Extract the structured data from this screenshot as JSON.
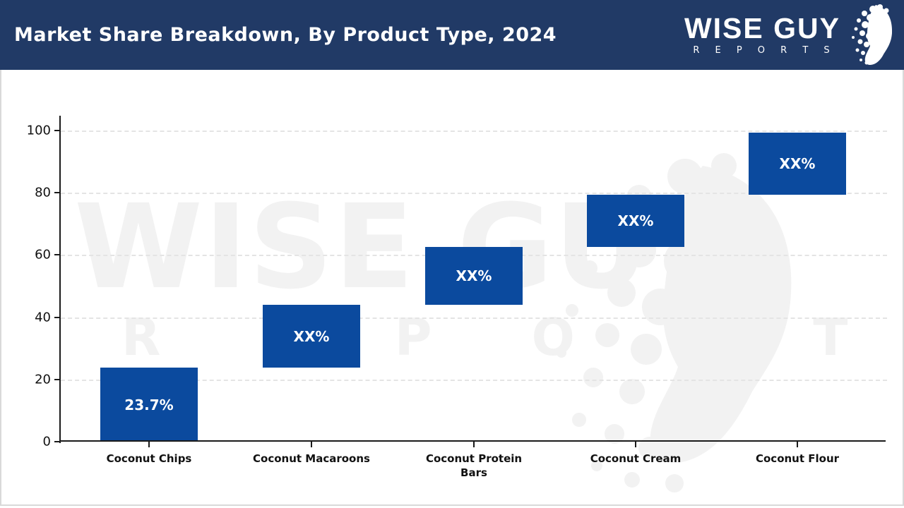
{
  "header": {
    "title": "Market Share Breakdown, By Product Type, 2024",
    "bg_color": "#213A66",
    "logo": {
      "line1": "WISE GUY",
      "line2": "R E P O R T S"
    }
  },
  "watermark": {
    "line1": "WISE GUY",
    "line2": "R E P O R T S"
  },
  "chart_data": {
    "type": "bar",
    "variant": "floating-waterfall",
    "title": "Market Share Breakdown, By Product Type, 2024",
    "categories": [
      "Coconut Chips",
      "Coconut Macaroons",
      "Coconut Protein\nBars",
      "Coconut Cream",
      "Coconut Flour"
    ],
    "bars": [
      {
        "start": 0,
        "end": 23.7,
        "label": "23.7%"
      },
      {
        "start": 23.7,
        "end": 43.9,
        "label": "XX%"
      },
      {
        "start": 43.9,
        "end": 62.6,
        "label": "XX%"
      },
      {
        "start": 62.6,
        "end": 79.4,
        "label": "XX%"
      },
      {
        "start": 79.4,
        "end": 99.3,
        "label": "XX%"
      }
    ],
    "values": [
      23.7,
      20.2,
      18.7,
      16.8,
      19.9
    ],
    "xlabel": "",
    "ylabel": "",
    "yticks": [
      0,
      20,
      40,
      60,
      80,
      100
    ],
    "ylim": [
      0,
      105
    ],
    "grid": "horizontal-dashed",
    "legend": "none",
    "bar_color": "#0B4A9E",
    "bar_label_color": "#ffffff",
    "axis_color": "#1a1a1a"
  }
}
